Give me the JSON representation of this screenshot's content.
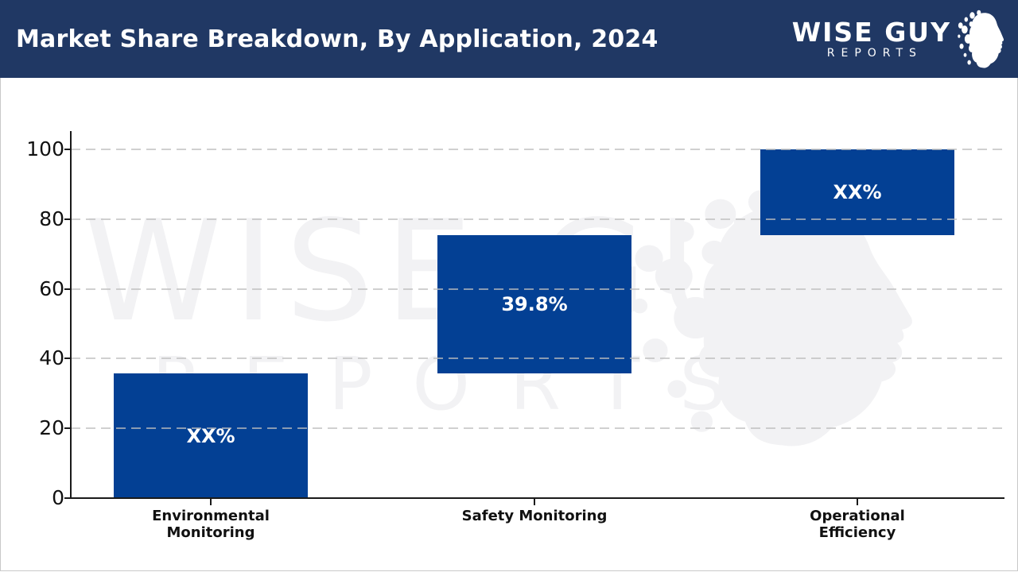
{
  "header": {
    "title": "Market Share Breakdown, By Application, 2024",
    "logo_line1": "WISE GUY",
    "logo_line2": "REPORTS"
  },
  "watermark": {
    "line1": "WISE GUY",
    "line2": "REPORTS"
  },
  "colors": {
    "header_bg": "#203864",
    "bar": "#034094",
    "grid": "#bebebe",
    "axis": "#1a1a1a",
    "watermark": "#f2f2f4",
    "bar_label": "#ffffff"
  },
  "chart_data": {
    "type": "bar",
    "subtype": "floating_stacked_waterfall",
    "title": "Market Share Breakdown, By Application, 2024",
    "categories": [
      "Environmental Monitoring",
      "Safety Monitoring",
      "Operational Efficiency"
    ],
    "category_label_lines": [
      [
        "Environmental",
        "Monitoring"
      ],
      [
        "Safety Monitoring"
      ],
      [
        "Operational",
        "Efficiency"
      ]
    ],
    "segments": [
      {
        "category": "Environmental Monitoring",
        "start": 0,
        "end": 35.7,
        "label": "XX%"
      },
      {
        "category": "Safety Monitoring",
        "start": 35.7,
        "end": 75.5,
        "label": "39.8%"
      },
      {
        "category": "Operational Efficiency",
        "start": 75.5,
        "end": 99.9,
        "label": "XX%"
      }
    ],
    "y_ticks": [
      0,
      20,
      40,
      60,
      80,
      100
    ],
    "ylim": [
      0,
      105
    ],
    "xlabel": "",
    "ylabel": "",
    "grid": "dashed horizontal, drawn over bars",
    "legend": "none"
  }
}
